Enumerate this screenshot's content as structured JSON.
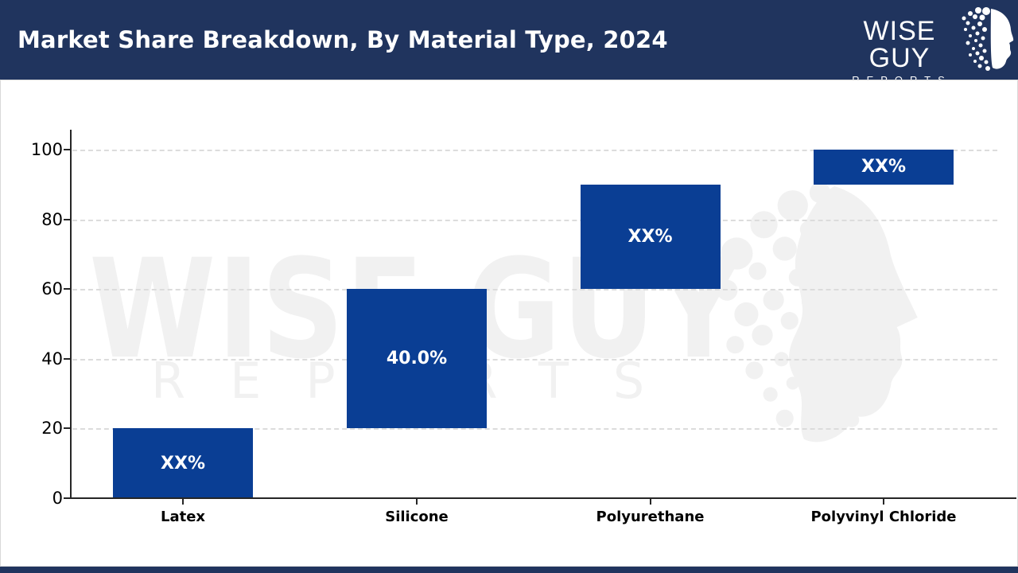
{
  "header": {
    "title": "Market Share Breakdown, By Material Type, 2024",
    "brand": {
      "line1": "WISE GUY",
      "line2": "REPORTS"
    }
  },
  "watermark": {
    "line1": "WISE GUY",
    "line2": "REPORTS"
  },
  "chart_data": {
    "type": "bar",
    "variant": "floating-waterfall",
    "title": "Market Share Breakdown, By Material Type, 2024",
    "categories": [
      "Latex",
      "Silicone",
      "Polyurethane",
      "Polyvinyl Chloride"
    ],
    "segments": [
      {
        "category": "Latex",
        "base": 0,
        "top": 20,
        "value": 20,
        "label": "XX%"
      },
      {
        "category": "Silicone",
        "base": 20,
        "top": 60,
        "value": 40,
        "label": "40.0%"
      },
      {
        "category": "Polyurethane",
        "base": 60,
        "top": 90,
        "value": 30,
        "label": "XX%"
      },
      {
        "category": "Polyvinyl Chloride",
        "base": 90,
        "top": 100,
        "value": 10,
        "label": "XX%"
      }
    ],
    "yticks": [
      0,
      20,
      40,
      60,
      80,
      100
    ],
    "ylim": [
      0,
      105
    ],
    "xlabel": "",
    "ylabel": "",
    "grid": "horizontal-dashed",
    "legend": "none"
  },
  "colors": {
    "header_bg": "#20345e",
    "bar": "#0a3e94",
    "bar_label": "#ffffff",
    "grid": "#dcdcdc",
    "axis": "#262626",
    "watermark": "#f1f1f1",
    "region_border": "#d9d9d9"
  }
}
